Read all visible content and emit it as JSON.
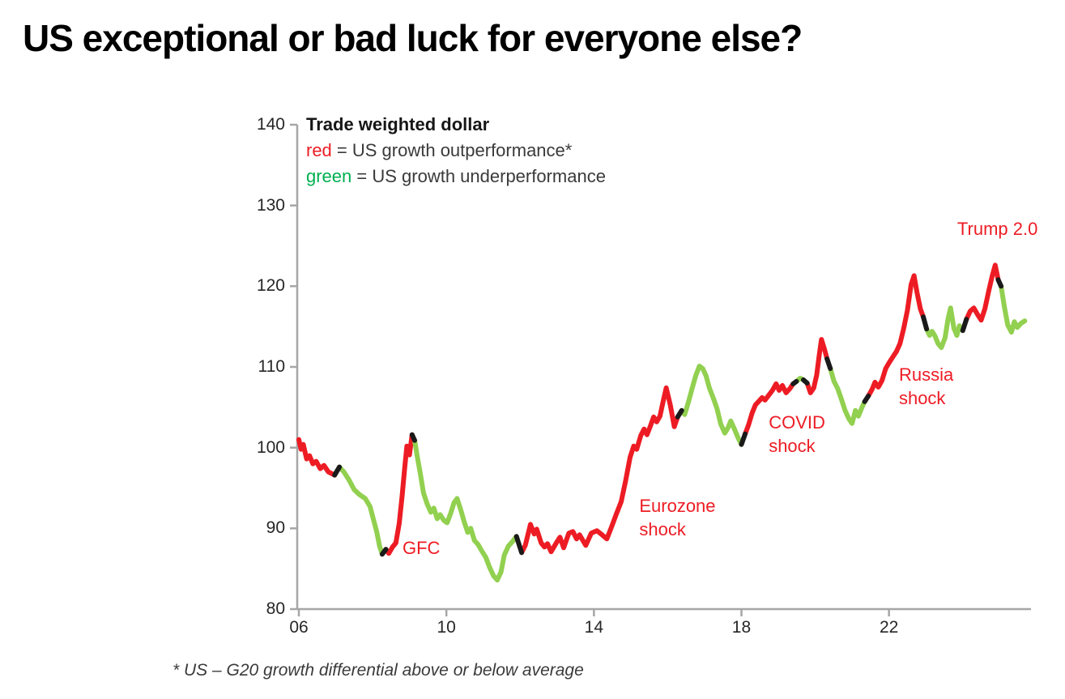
{
  "page": {
    "title": "US exceptional or bad luck for everyone else?"
  },
  "legend": {
    "title": "Trade weighted dollar",
    "red": {
      "key": "red",
      "rest": " = US growth outperformance*"
    },
    "green": {
      "key": "green",
      "rest": " = US growth underperformance"
    }
  },
  "footnote": "* US – G20 growth differential above or below average",
  "colors": {
    "line_red": "#ed1c24",
    "line_green": "#92d050",
    "legend_red_text": "#ed1c24",
    "legend_green_text": "#00b050",
    "annotation_text": "#ed1c24",
    "transition_joint": "#1a1a1a",
    "axis": "#a6a6a6",
    "tick_text": "#262626",
    "body_text": "#3a3a3a",
    "title_text": "#000000",
    "background": "#ffffff"
  },
  "chart_data": {
    "type": "line",
    "title": "Trade weighted dollar",
    "xlabel": "",
    "ylabel": "",
    "grid": false,
    "xlim": [
      2006,
      2025.85
    ],
    "ylim": [
      80,
      140
    ],
    "y_ticks": [
      80,
      90,
      100,
      110,
      120,
      130,
      140
    ],
    "x_ticks": [
      {
        "label": "06",
        "year": 2006
      },
      {
        "label": "10",
        "year": 2010
      },
      {
        "label": "14",
        "year": 2014
      },
      {
        "label": "18",
        "year": 2018
      },
      {
        "label": "22",
        "year": 2022
      }
    ],
    "series_coloring": {
      "R": "US growth outperformance",
      "G": "US growth underperformance"
    },
    "annotations": [
      {
        "id": "gfc",
        "text": "GFC",
        "x": 2008.81,
        "y": 89.0
      },
      {
        "id": "eurozone-shock",
        "text": "Eurozone\nshock",
        "x": 2015.23,
        "y": 94.2
      },
      {
        "id": "covid-shock",
        "text": "COVID\nshock",
        "x": 2018.74,
        "y": 104.6
      },
      {
        "id": "russia-shock",
        "text": "Russia\nshock",
        "x": 2022.27,
        "y": 110.5
      },
      {
        "id": "trump-2-0",
        "text": "Trump 2.0",
        "x": 2023.85,
        "y": 128.6
      }
    ],
    "points": [
      [
        2006.0,
        101.0,
        "R"
      ],
      [
        2006.06,
        99.8,
        "R"
      ],
      [
        2006.12,
        100.4,
        "R"
      ],
      [
        2006.21,
        98.6,
        "R"
      ],
      [
        2006.29,
        99.0,
        "R"
      ],
      [
        2006.38,
        98.0,
        "R"
      ],
      [
        2006.47,
        98.3,
        "R"
      ],
      [
        2006.58,
        97.4,
        "R"
      ],
      [
        2006.68,
        97.8,
        "R"
      ],
      [
        2006.8,
        97.0,
        "R"
      ],
      [
        2006.97,
        96.6,
        "R"
      ],
      [
        2007.1,
        97.6,
        "G"
      ],
      [
        2007.22,
        97.0,
        "G"
      ],
      [
        2007.36,
        96.0,
        "G"
      ],
      [
        2007.5,
        94.8,
        "G"
      ],
      [
        2007.64,
        94.2,
        "G"
      ],
      [
        2007.8,
        93.7,
        "G"
      ],
      [
        2007.93,
        92.7,
        "G"
      ],
      [
        2008.03,
        91.0,
        "G"
      ],
      [
        2008.11,
        89.6,
        "G"
      ],
      [
        2008.19,
        87.8,
        "G"
      ],
      [
        2008.26,
        86.8,
        "G"
      ],
      [
        2008.36,
        87.4,
        "R"
      ],
      [
        2008.44,
        86.9,
        "R"
      ],
      [
        2008.54,
        87.7,
        "R"
      ],
      [
        2008.63,
        88.2,
        "R"
      ],
      [
        2008.72,
        90.6,
        "R"
      ],
      [
        2008.8,
        94.0,
        "R"
      ],
      [
        2008.87,
        97.5,
        "R"
      ],
      [
        2008.93,
        100.2,
        "R"
      ],
      [
        2009.0,
        99.1,
        "R"
      ],
      [
        2009.07,
        101.6,
        "R"
      ],
      [
        2009.14,
        100.9,
        "G"
      ],
      [
        2009.21,
        98.9,
        "G"
      ],
      [
        2009.29,
        96.9,
        "G"
      ],
      [
        2009.38,
        94.4,
        "G"
      ],
      [
        2009.48,
        93.0,
        "G"
      ],
      [
        2009.58,
        92.0,
        "G"
      ],
      [
        2009.66,
        92.5,
        "G"
      ],
      [
        2009.75,
        91.2,
        "G"
      ],
      [
        2009.83,
        91.7,
        "G"
      ],
      [
        2009.93,
        91.0,
        "G"
      ],
      [
        2010.02,
        90.7,
        "G"
      ],
      [
        2010.12,
        91.9,
        "G"
      ],
      [
        2010.21,
        93.2,
        "G"
      ],
      [
        2010.29,
        93.7,
        "G"
      ],
      [
        2010.39,
        92.3,
        "G"
      ],
      [
        2010.49,
        90.7,
        "G"
      ],
      [
        2010.58,
        89.5,
        "G"
      ],
      [
        2010.66,
        90.0,
        "G"
      ],
      [
        2010.76,
        88.5,
        "G"
      ],
      [
        2010.86,
        88.0,
        "G"
      ],
      [
        2010.96,
        87.2,
        "G"
      ],
      [
        2011.07,
        86.4,
        "G"
      ],
      [
        2011.17,
        85.2,
        "G"
      ],
      [
        2011.28,
        84.1,
        "G"
      ],
      [
        2011.38,
        83.6,
        "G"
      ],
      [
        2011.48,
        84.6,
        "G"
      ],
      [
        2011.57,
        86.7,
        "G"
      ],
      [
        2011.68,
        87.8,
        "G"
      ],
      [
        2011.78,
        88.3,
        "G"
      ],
      [
        2011.9,
        89.0,
        "G"
      ],
      [
        2012.04,
        87.0,
        "R"
      ],
      [
        2012.14,
        87.9,
        "R"
      ],
      [
        2012.28,
        90.5,
        "R"
      ],
      [
        2012.38,
        89.3,
        "R"
      ],
      [
        2012.45,
        89.9,
        "R"
      ],
      [
        2012.57,
        88.2,
        "R"
      ],
      [
        2012.66,
        87.7,
        "R"
      ],
      [
        2012.74,
        88.1,
        "R"
      ],
      [
        2012.84,
        87.1,
        "R"
      ],
      [
        2012.98,
        88.2,
        "R"
      ],
      [
        2013.08,
        88.9,
        "R"
      ],
      [
        2013.18,
        87.6,
        "R"
      ],
      [
        2013.32,
        89.4,
        "R"
      ],
      [
        2013.43,
        89.6,
        "R"
      ],
      [
        2013.53,
        88.7,
        "R"
      ],
      [
        2013.61,
        89.2,
        "R"
      ],
      [
        2013.78,
        87.9,
        "R"
      ],
      [
        2013.93,
        89.4,
        "R"
      ],
      [
        2014.08,
        89.7,
        "R"
      ],
      [
        2014.22,
        89.2,
        "R"
      ],
      [
        2014.35,
        88.7,
        "R"
      ],
      [
        2014.48,
        90.2,
        "R"
      ],
      [
        2014.61,
        91.8,
        "R"
      ],
      [
        2014.74,
        93.3,
        "R"
      ],
      [
        2014.86,
        95.9,
        "R"
      ],
      [
        2014.98,
        98.8,
        "R"
      ],
      [
        2015.08,
        100.2,
        "R"
      ],
      [
        2015.16,
        99.8,
        "R"
      ],
      [
        2015.27,
        101.5,
        "R"
      ],
      [
        2015.36,
        102.3,
        "R"
      ],
      [
        2015.44,
        101.6,
        "R"
      ],
      [
        2015.54,
        102.8,
        "R"
      ],
      [
        2015.62,
        103.8,
        "R"
      ],
      [
        2015.7,
        103.2,
        "R"
      ],
      [
        2015.79,
        103.9,
        "R"
      ],
      [
        2015.89,
        106.0,
        "R"
      ],
      [
        2015.96,
        107.4,
        "R"
      ],
      [
        2016.07,
        105.3,
        "R"
      ],
      [
        2016.18,
        102.6,
        "R"
      ],
      [
        2016.27,
        103.8,
        "R"
      ],
      [
        2016.38,
        104.6,
        "G"
      ],
      [
        2016.46,
        104.1,
        "G"
      ],
      [
        2016.56,
        105.6,
        "G"
      ],
      [
        2016.66,
        107.3,
        "G"
      ],
      [
        2016.76,
        108.9,
        "G"
      ],
      [
        2016.86,
        110.1,
        "G"
      ],
      [
        2016.95,
        109.8,
        "G"
      ],
      [
        2017.04,
        108.9,
        "G"
      ],
      [
        2017.13,
        107.4,
        "G"
      ],
      [
        2017.24,
        106.1,
        "G"
      ],
      [
        2017.34,
        104.8,
        "G"
      ],
      [
        2017.44,
        102.9,
        "G"
      ],
      [
        2017.55,
        101.8,
        "G"
      ],
      [
        2017.64,
        102.5,
        "G"
      ],
      [
        2017.71,
        103.3,
        "G"
      ],
      [
        2017.81,
        102.3,
        "G"
      ],
      [
        2017.91,
        101.2,
        "G"
      ],
      [
        2018.0,
        100.4,
        "G"
      ],
      [
        2018.1,
        101.7,
        "R"
      ],
      [
        2018.19,
        102.8,
        "R"
      ],
      [
        2018.29,
        104.3,
        "R"
      ],
      [
        2018.38,
        105.3,
        "R"
      ],
      [
        2018.48,
        105.8,
        "R"
      ],
      [
        2018.56,
        106.2,
        "R"
      ],
      [
        2018.64,
        105.9,
        "R"
      ],
      [
        2018.74,
        106.5,
        "R"
      ],
      [
        2018.84,
        107.1,
        "R"
      ],
      [
        2018.94,
        107.9,
        "R"
      ],
      [
        2019.02,
        107.1,
        "R"
      ],
      [
        2019.11,
        107.7,
        "R"
      ],
      [
        2019.21,
        106.8,
        "R"
      ],
      [
        2019.31,
        107.3,
        "R"
      ],
      [
        2019.4,
        107.9,
        "R"
      ],
      [
        2019.49,
        108.2,
        "G"
      ],
      [
        2019.59,
        108.6,
        "G"
      ],
      [
        2019.68,
        108.4,
        "G"
      ],
      [
        2019.78,
        108.0,
        "R"
      ],
      [
        2019.87,
        106.8,
        "R"
      ],
      [
        2019.96,
        107.4,
        "R"
      ],
      [
        2020.04,
        109.0,
        "R"
      ],
      [
        2020.11,
        111.5,
        "R"
      ],
      [
        2020.17,
        113.4,
        "R"
      ],
      [
        2020.25,
        112.2,
        "R"
      ],
      [
        2020.32,
        111.0,
        "R"
      ],
      [
        2020.41,
        109.8,
        "G"
      ],
      [
        2020.51,
        108.2,
        "G"
      ],
      [
        2020.61,
        107.3,
        "G"
      ],
      [
        2020.71,
        106.0,
        "G"
      ],
      [
        2020.81,
        104.6,
        "G"
      ],
      [
        2020.91,
        103.6,
        "G"
      ],
      [
        2021.0,
        103.0,
        "G"
      ],
      [
        2021.09,
        104.6,
        "G"
      ],
      [
        2021.17,
        103.9,
        "G"
      ],
      [
        2021.27,
        105.0,
        "G"
      ],
      [
        2021.34,
        105.7,
        "G"
      ],
      [
        2021.44,
        106.4,
        "R"
      ],
      [
        2021.54,
        107.2,
        "R"
      ],
      [
        2021.62,
        108.1,
        "R"
      ],
      [
        2021.71,
        107.5,
        "R"
      ],
      [
        2021.81,
        108.3,
        "R"
      ],
      [
        2021.91,
        109.8,
        "R"
      ],
      [
        2022.0,
        110.5,
        "R"
      ],
      [
        2022.1,
        111.2,
        "R"
      ],
      [
        2022.2,
        111.9,
        "R"
      ],
      [
        2022.3,
        112.9,
        "R"
      ],
      [
        2022.4,
        114.8,
        "R"
      ],
      [
        2022.5,
        117.0,
        "R"
      ],
      [
        2022.6,
        120.2,
        "R"
      ],
      [
        2022.68,
        121.3,
        "R"
      ],
      [
        2022.76,
        119.2,
        "R"
      ],
      [
        2022.85,
        117.2,
        "R"
      ],
      [
        2022.93,
        116.2,
        "R"
      ],
      [
        2023.02,
        114.7,
        "G"
      ],
      [
        2023.1,
        113.9,
        "G"
      ],
      [
        2023.17,
        114.4,
        "G"
      ],
      [
        2023.25,
        113.8,
        "G"
      ],
      [
        2023.33,
        112.9,
        "G"
      ],
      [
        2023.42,
        112.4,
        "G"
      ],
      [
        2023.52,
        113.6,
        "G"
      ],
      [
        2023.6,
        115.9,
        "G"
      ],
      [
        2023.67,
        117.3,
        "G"
      ],
      [
        2023.76,
        114.8,
        "G"
      ],
      [
        2023.84,
        113.9,
        "G"
      ],
      [
        2023.91,
        115.1,
        "G"
      ],
      [
        2024.0,
        114.5,
        "G"
      ],
      [
        2024.1,
        115.9,
        "R"
      ],
      [
        2024.2,
        116.9,
        "R"
      ],
      [
        2024.3,
        117.3,
        "R"
      ],
      [
        2024.4,
        116.5,
        "R"
      ],
      [
        2024.5,
        115.8,
        "R"
      ],
      [
        2024.6,
        117.2,
        "R"
      ],
      [
        2024.7,
        119.3,
        "R"
      ],
      [
        2024.8,
        121.3,
        "R"
      ],
      [
        2024.88,
        122.6,
        "R"
      ],
      [
        2024.96,
        120.8,
        "R"
      ],
      [
        2025.04,
        120.0,
        "G"
      ],
      [
        2025.13,
        117.4,
        "G"
      ],
      [
        2025.22,
        115.2,
        "G"
      ],
      [
        2025.32,
        114.3,
        "G"
      ],
      [
        2025.4,
        115.6,
        "G"
      ],
      [
        2025.48,
        114.9,
        "G"
      ],
      [
        2025.58,
        115.4,
        "G"
      ],
      [
        2025.68,
        115.7,
        "G"
      ]
    ]
  }
}
